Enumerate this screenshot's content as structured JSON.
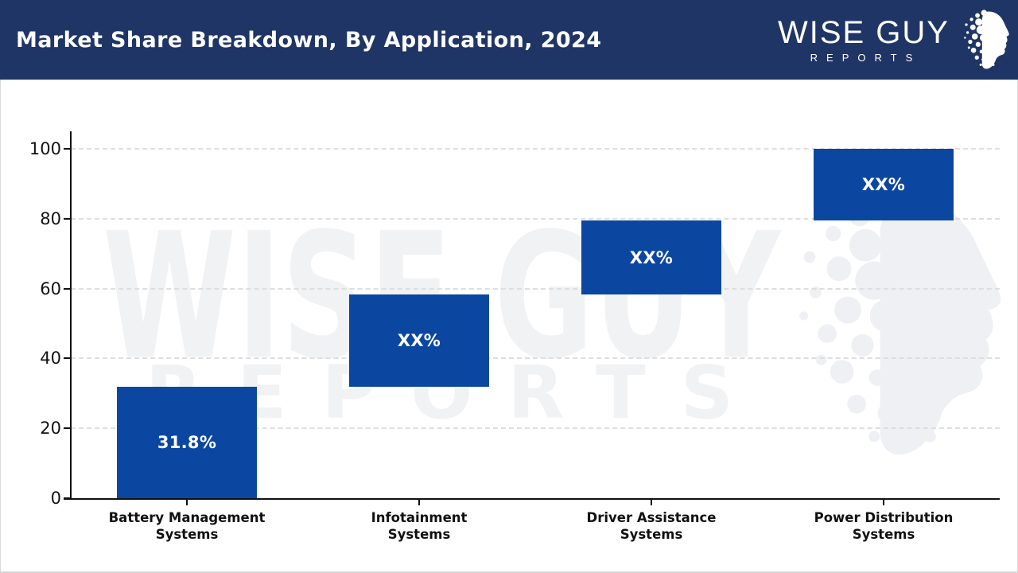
{
  "header": {
    "title": "Market Share Breakdown, By Application, 2024",
    "bg_color": "#1f3565",
    "logo": {
      "name": "WISE GUY",
      "subtitle": "REPORTS"
    }
  },
  "watermark": {
    "line1": "WISE GUY",
    "line2": "REPORTS"
  },
  "chart_data": {
    "type": "bar",
    "subtype": "waterfall",
    "title": "Market Share Breakdown, By Application, 2024",
    "categories": [
      [
        "Battery Management",
        "Systems"
      ],
      [
        "Infotainment",
        "Systems"
      ],
      [
        "Driver Assistance",
        "Systems"
      ],
      [
        "Power Distribution",
        "Systems"
      ]
    ],
    "segments": [
      {
        "label": "31.8%",
        "start": 0,
        "end": 31.8
      },
      {
        "label": "XX%",
        "start": 31.8,
        "end": 58.3
      },
      {
        "label": "XX%",
        "start": 58.3,
        "end": 79.5
      },
      {
        "label": "XX%",
        "start": 79.5,
        "end": 100
      }
    ],
    "yticks": [
      0,
      20,
      40,
      60,
      80,
      100
    ],
    "ylim": [
      0,
      105
    ],
    "xlabel": "",
    "ylabel": "",
    "grid": "horizontal-dashed",
    "legend": "none",
    "bar_color": "#0b47a1",
    "bar_label_color": "#ffffff",
    "axis_color": "#111111",
    "gridline_color": "#dedede",
    "watermark_color": "#f1f2f4"
  }
}
